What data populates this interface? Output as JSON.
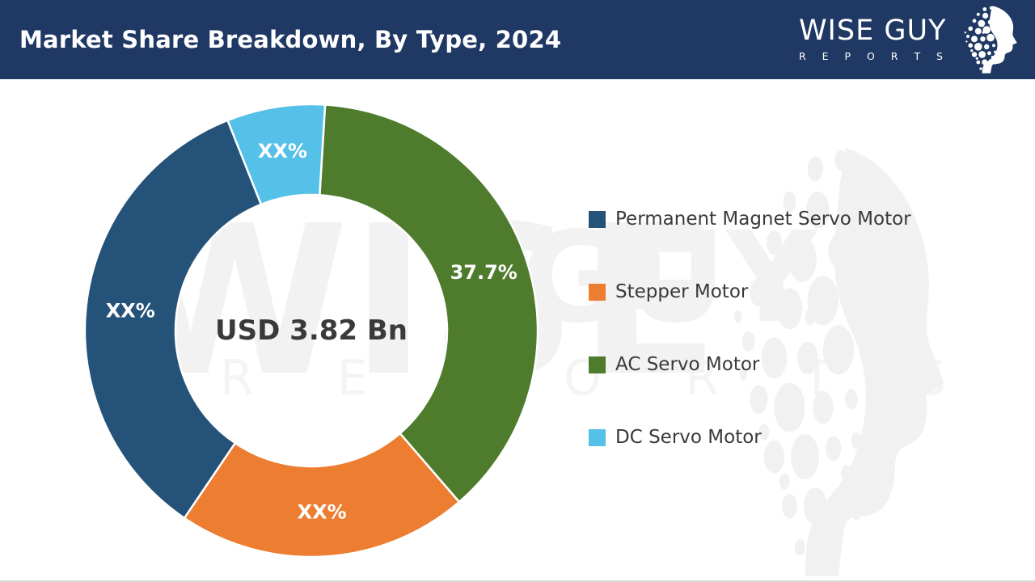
{
  "header": {
    "title": "Market Share Breakdown, By Type, 2024",
    "logo": {
      "line1": "WISE GUY",
      "line2": "R E P O R T S"
    }
  },
  "watermark": {
    "wise": "WISE",
    "guy": "GUY",
    "reports": "R E P O R T S"
  },
  "chart_data": {
    "type": "pie",
    "subtype": "donut",
    "title": "Market Share Breakdown, By Type, 2024",
    "center_label": "USD 3.82 Bn",
    "unit": "percent",
    "start_angle_deg": 3.5,
    "segments": [
      {
        "name": "AC Servo Motor",
        "value": 37.7,
        "display_label": "37.7%",
        "color": "#4E7B2C"
      },
      {
        "name": "Stepper Motor",
        "value": 20.8,
        "display_label": "XX%",
        "color": "#EC7D31"
      },
      {
        "name": "Permanent Magnet Servo Motor",
        "value": 34.5,
        "display_label": "XX%",
        "color": "#245279"
      },
      {
        "name": "DC Servo Motor",
        "value": 7.0,
        "display_label": "XX%",
        "color": "#56C1E8"
      }
    ]
  },
  "legend": {
    "items": [
      {
        "label": "Permanent Magnet Servo Motor",
        "color": "#245279"
      },
      {
        "label": "Stepper Motor",
        "color": "#EC7D31"
      },
      {
        "label": "AC Servo Motor",
        "color": "#4E7B2C"
      },
      {
        "label": "DC Servo Motor",
        "color": "#56C1E8"
      }
    ]
  },
  "colors": {
    "header_bg": "#1F3864",
    "text_dark": "#3A3A3A",
    "watermark": "#F2F2F2",
    "separator": "#D9D9D9"
  }
}
